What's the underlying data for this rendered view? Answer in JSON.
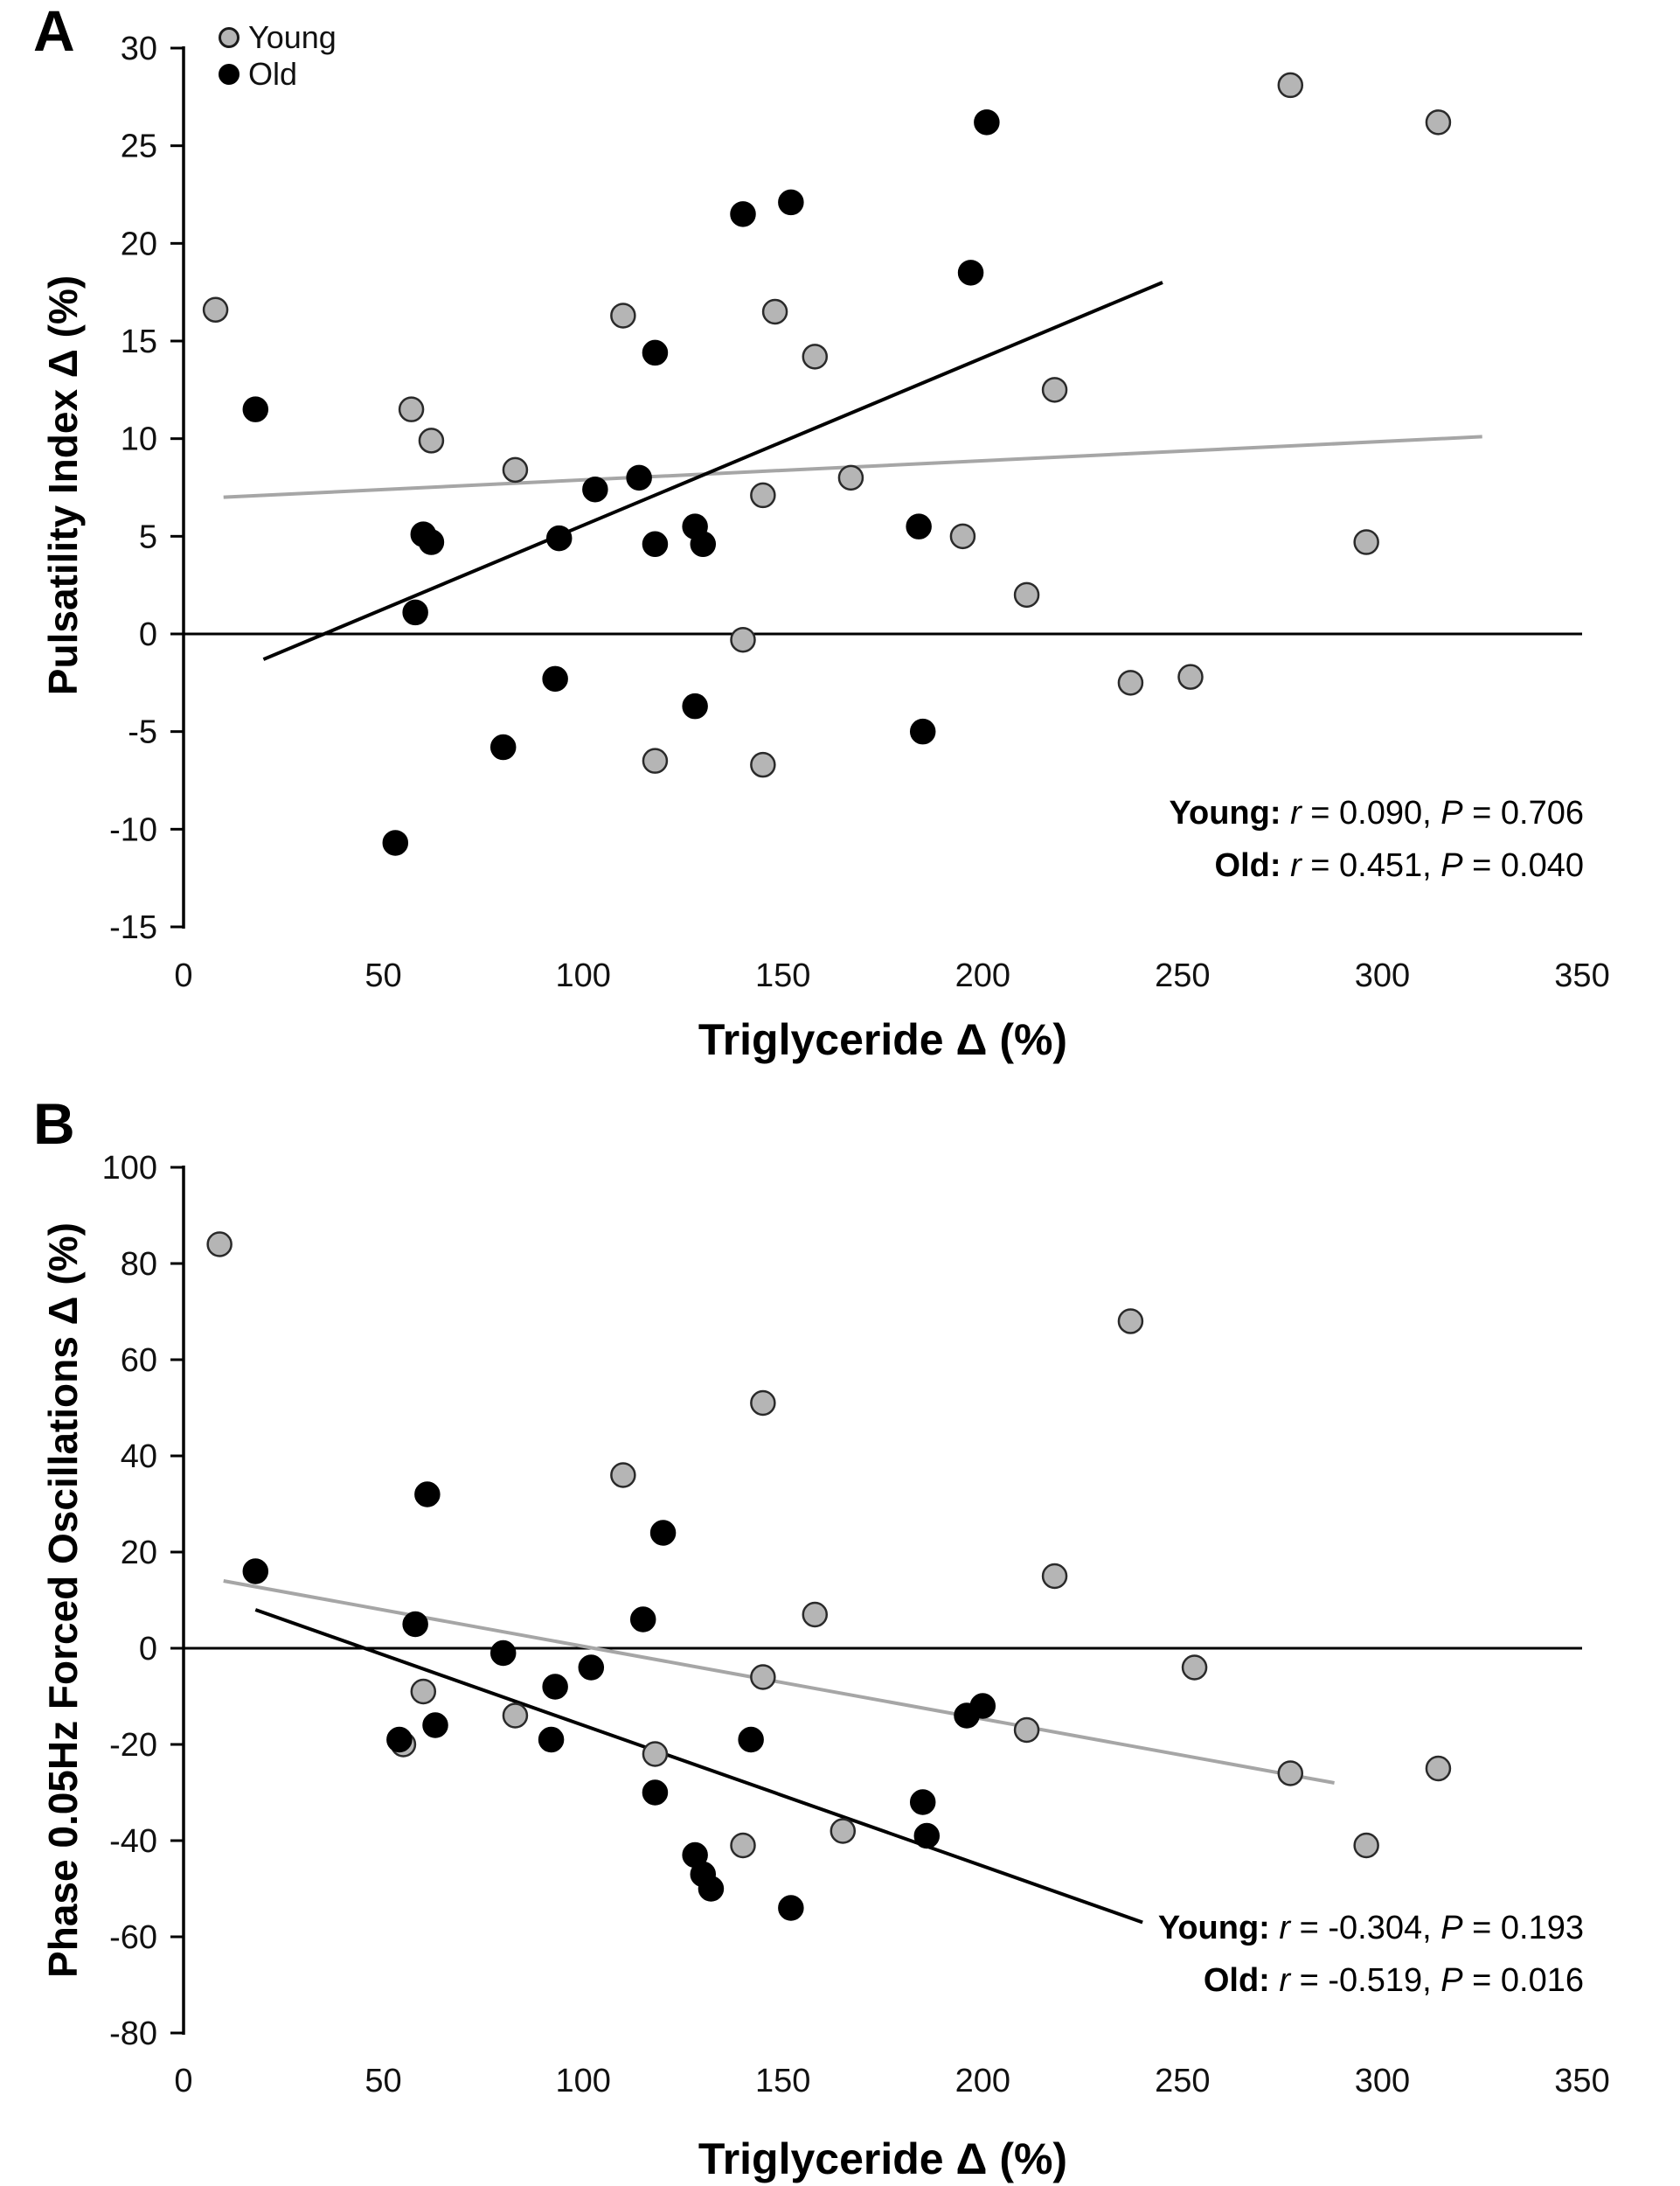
{
  "figure": {
    "background": "#ffffff"
  },
  "panels": [
    {
      "letter": "A"
    },
    {
      "letter": "B"
    }
  ],
  "colors": {
    "young_fill": "#b5b5b5",
    "young_stroke": "#2a2a2a",
    "old_fill": "#000000",
    "old_stroke": "#000000",
    "young_trend": "#a6a6a6",
    "old_trend": "#000000",
    "axis": "#000000"
  },
  "chart_data": [
    {
      "type": "scatter",
      "panel": "A",
      "xlabel": "Triglyceride Δ (%)",
      "ylabel": "Pulsatility Index Δ (%)",
      "xlim": [
        0,
        350
      ],
      "ylim": [
        -15,
        30
      ],
      "xticks": [
        0,
        50,
        100,
        150,
        200,
        250,
        300,
        350
      ],
      "yticks": [
        -15,
        -10,
        -5,
        0,
        5,
        10,
        15,
        20,
        25,
        30
      ],
      "grid": false,
      "legend_position": "top-left",
      "zero_line": true,
      "series": [
        {
          "name": "Young",
          "marker_fill": "#b5b5b5",
          "marker_stroke": "#2a2a2a",
          "points": [
            [
              8,
              16.6
            ],
            [
              57,
              11.5
            ],
            [
              62,
              9.9
            ],
            [
              83,
              8.4
            ],
            [
              110,
              16.3
            ],
            [
              118,
              -6.5
            ],
            [
              140,
              -0.3
            ],
            [
              145,
              7.1
            ],
            [
              145,
              -6.7
            ],
            [
              148,
              16.5
            ],
            [
              158,
              14.2
            ],
            [
              167,
              8.0
            ],
            [
              195,
              5.0
            ],
            [
              211,
              2.0
            ],
            [
              218,
              12.5
            ],
            [
              237,
              -2.5
            ],
            [
              252,
              -2.2
            ],
            [
              277,
              28.1
            ],
            [
              296,
              4.7
            ],
            [
              314,
              26.2
            ]
          ],
          "trend": {
            "x1": 10,
            "y1": 7.0,
            "x2": 325,
            "y2": 10.1,
            "color": "#a6a6a6"
          },
          "stats": {
            "prefix": "Young: ",
            "r_sym": "r",
            "r_val": " = 0.090, ",
            "p_sym": "P",
            "p_val": " = 0.706"
          }
        },
        {
          "name": "Old",
          "marker_fill": "#000000",
          "marker_stroke": "#000000",
          "points": [
            [
              18,
              11.5
            ],
            [
              53,
              -10.7
            ],
            [
              58,
              1.1
            ],
            [
              60,
              5.1
            ],
            [
              62,
              4.7
            ],
            [
              80,
              -5.8
            ],
            [
              93,
              -2.3
            ],
            [
              94,
              4.9
            ],
            [
              103,
              7.4
            ],
            [
              114,
              8.0
            ],
            [
              118,
              14.4
            ],
            [
              118,
              4.6
            ],
            [
              128,
              5.5
            ],
            [
              130,
              4.6
            ],
            [
              128,
              -3.7
            ],
            [
              140,
              21.5
            ],
            [
              152,
              22.1
            ],
            [
              184,
              5.5
            ],
            [
              185,
              -5.0
            ],
            [
              197,
              18.5
            ],
            [
              201,
              26.2
            ]
          ],
          "trend": {
            "x1": 20,
            "y1": -1.3,
            "x2": 245,
            "y2": 18.0,
            "color": "#000000"
          },
          "stats": {
            "prefix": "Old: ",
            "r_sym": "r",
            "r_val": " = 0.451, ",
            "p_sym": "P",
            "p_val": " = 0.040"
          }
        }
      ]
    },
    {
      "type": "scatter",
      "panel": "B",
      "xlabel": "Triglyceride Δ (%)",
      "ylabel": "Phase 0.05Hz Forced Oscillations Δ (%)",
      "xlim": [
        0,
        350
      ],
      "ylim": [
        -80,
        100
      ],
      "xticks": [
        0,
        50,
        100,
        150,
        200,
        250,
        300,
        350
      ],
      "yticks": [
        -80,
        -60,
        -40,
        -20,
        0,
        20,
        40,
        60,
        80,
        100
      ],
      "grid": false,
      "legend_position": "none",
      "zero_line": true,
      "series": [
        {
          "name": "Young",
          "marker_fill": "#b5b5b5",
          "marker_stroke": "#2a2a2a",
          "points": [
            [
              9,
              84
            ],
            [
              55,
              -20
            ],
            [
              60,
              -9
            ],
            [
              83,
              -14
            ],
            [
              110,
              36
            ],
            [
              118,
              -22
            ],
            [
              140,
              -41
            ],
            [
              145,
              51
            ],
            [
              145,
              -6
            ],
            [
              158,
              7
            ],
            [
              165,
              -38
            ],
            [
              211,
              -17
            ],
            [
              218,
              15
            ],
            [
              237,
              68
            ],
            [
              253,
              -4
            ],
            [
              277,
              -26
            ],
            [
              296,
              -41
            ],
            [
              314,
              -25
            ]
          ],
          "trend": {
            "x1": 10,
            "y1": 14,
            "x2": 288,
            "y2": -28,
            "color": "#a6a6a6"
          },
          "stats": {
            "prefix": "Young: ",
            "r_sym": "r",
            "r_val": " = -0.304, ",
            "p_sym": "P",
            "p_val": " = 0.193"
          }
        },
        {
          "name": "Old",
          "marker_fill": "#000000",
          "marker_stroke": "#000000",
          "points": [
            [
              18,
              16
            ],
            [
              54,
              -19
            ],
            [
              58,
              5
            ],
            [
              61,
              32
            ],
            [
              63,
              -16
            ],
            [
              80,
              -1
            ],
            [
              92,
              -19
            ],
            [
              93,
              -8
            ],
            [
              102,
              -4
            ],
            [
              115,
              6
            ],
            [
              118,
              -30
            ],
            [
              120,
              24
            ],
            [
              128,
              -43
            ],
            [
              130,
              -47
            ],
            [
              132,
              -50
            ],
            [
              142,
              -19
            ],
            [
              152,
              -54
            ],
            [
              185,
              -32
            ],
            [
              186,
              -39
            ],
            [
              196,
              -14
            ],
            [
              200,
              -12
            ]
          ],
          "trend": {
            "x1": 18,
            "y1": 8,
            "x2": 240,
            "y2": -57,
            "color": "#000000"
          },
          "stats": {
            "prefix": "Old: ",
            "r_sym": "r",
            "r_val": " = -0.519, ",
            "p_sym": "P",
            "p_val": " = 0.016"
          }
        }
      ]
    }
  ]
}
